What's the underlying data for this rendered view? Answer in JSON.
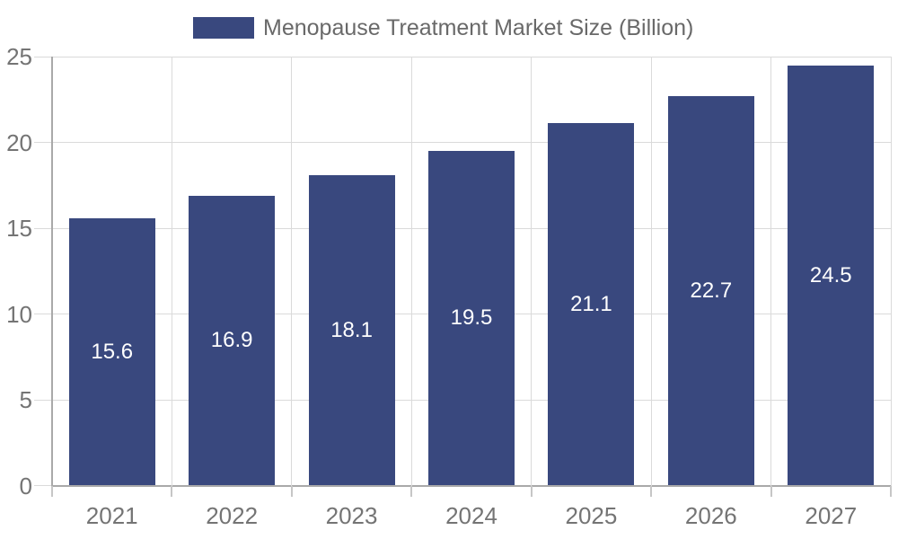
{
  "chart_data": {
    "type": "bar",
    "title": "Menopause Treatment Market Size (Billion)",
    "categories": [
      "2021",
      "2022",
      "2023",
      "2024",
      "2025",
      "2026",
      "2027"
    ],
    "values": [
      15.6,
      16.9,
      18.1,
      19.5,
      21.1,
      22.7,
      24.5
    ],
    "xlabel": "",
    "ylabel": "",
    "ylim": [
      0,
      25
    ],
    "yticks": [
      0,
      5,
      10,
      15,
      20,
      25
    ],
    "grid": true,
    "legend_position": "top-center",
    "value_label_position": "inside-center"
  },
  "colors": {
    "bar": "#39487E",
    "grid": "#dadada",
    "axis": "#a9a9a9",
    "tick": "#c6c6c6",
    "tick_label": "#747474",
    "legend_text": "#696969",
    "value_label": "#ffffff",
    "background": "#ffffff"
  }
}
